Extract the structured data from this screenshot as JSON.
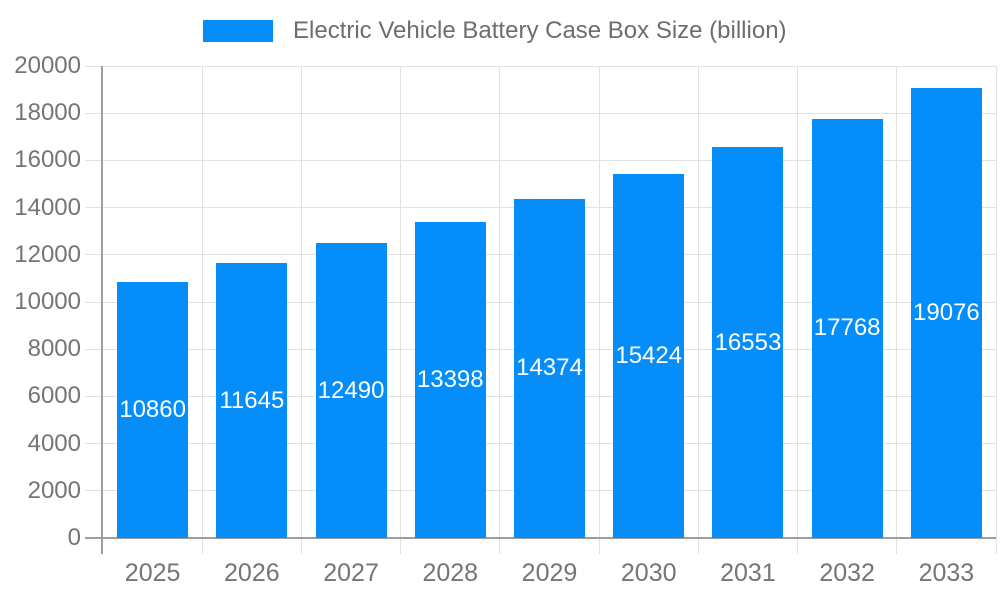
{
  "chart_data": {
    "type": "bar",
    "title": "Electric Vehicle Battery Case Box Size (billion)",
    "categories": [
      "2025",
      "2026",
      "2027",
      "2028",
      "2029",
      "2030",
      "2031",
      "2032",
      "2033"
    ],
    "values": [
      10860,
      11645,
      12490,
      13398,
      14374,
      15424,
      16553,
      17768,
      19076
    ],
    "series": [
      {
        "name": "Electric Vehicle Battery Case Box Size (billion)",
        "values": [
          10860,
          11645,
          12490,
          13398,
          14374,
          15424,
          16553,
          17768,
          19076
        ]
      }
    ],
    "xlabel": "",
    "ylabel": "",
    "ylim": [
      0,
      20000
    ],
    "ytick_step": 2000,
    "grid": true,
    "legend_position": "top",
    "value_labels": "inside-center"
  },
  "colors": {
    "bar": "#058ef9",
    "bar_label": "#ffffff",
    "grid": "#e2e2e2",
    "axis_line": "#9e9e9e",
    "axis_text": "#757575",
    "legend_text": "#6d6d6d",
    "background": "#ffffff"
  }
}
